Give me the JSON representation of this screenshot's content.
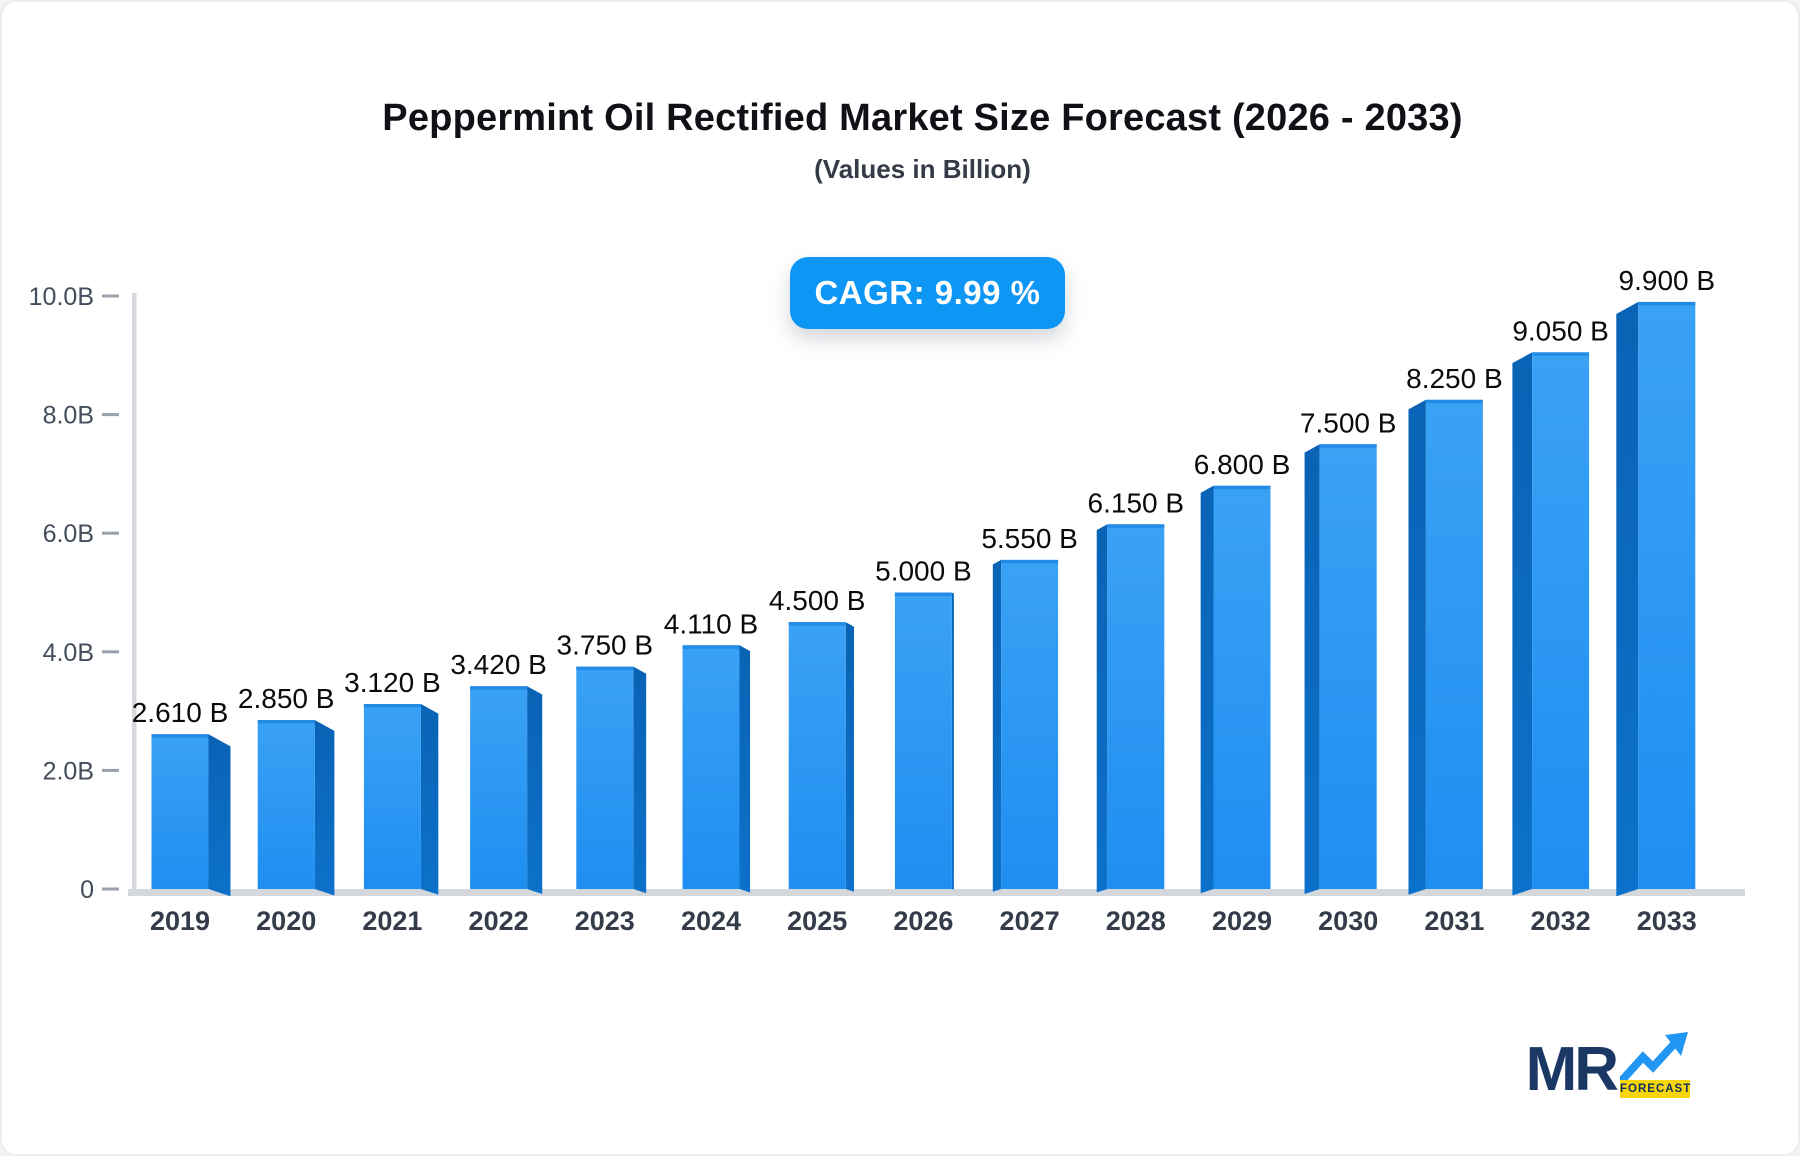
{
  "chart_data": {
    "type": "bar",
    "title": "Peppermint Oil Rectified Market Size Forecast (2026 - 2033)",
    "subtitle": "(Values in Billion)",
    "annotation": "CAGR: 9.99 %",
    "xlabel": "",
    "ylabel": "",
    "categories": [
      "2019",
      "2020",
      "2021",
      "2022",
      "2023",
      "2024",
      "2025",
      "2026",
      "2027",
      "2028",
      "2029",
      "2030",
      "2031",
      "2032",
      "2033"
    ],
    "values": [
      2.61,
      2.85,
      3.12,
      3.42,
      3.75,
      4.11,
      4.5,
      5.0,
      5.55,
      6.15,
      6.8,
      7.5,
      8.25,
      9.05,
      9.9
    ],
    "value_labels": [
      "2.610 B",
      "2.850 B",
      "3.120 B",
      "3.420 B",
      "3.750 B",
      "4.110 B",
      "4.500 B",
      "5.000 B",
      "5.550 B",
      "6.150 B",
      "6.800 B",
      "7.500 B",
      "8.250 B",
      "9.050 B",
      "9.900 B"
    ],
    "ylim": [
      0,
      10
    ],
    "yticks": [
      {
        "value": 10,
        "label": "10.0B"
      },
      {
        "value": 8,
        "label": "8.0B"
      },
      {
        "value": 6,
        "label": "6.0B"
      },
      {
        "value": 4,
        "label": "4.0B"
      },
      {
        "value": 2,
        "label": "2.0B"
      },
      {
        "value": 0,
        "label": "0"
      }
    ],
    "grid": false,
    "legend": false,
    "colors": {
      "bar_front_top": "#3aa2f5",
      "bar_front_bottom": "#1f8ef1",
      "bar_side": "#0968bf",
      "bar_top_edge": "#1d86e2",
      "axis_line": "#d4d7dc",
      "tick_dash": "#9ba1ab",
      "tick_label": "#444d5b",
      "category_label": "#343c49",
      "value_label": "#0b0b0d",
      "badge_blue": "#0e96f4"
    }
  },
  "logo": {
    "mr": "MR",
    "forecast": "FORECAST",
    "navy": "#1b3763",
    "blue": "#2196f3",
    "yellow": "#f6d60a"
  }
}
